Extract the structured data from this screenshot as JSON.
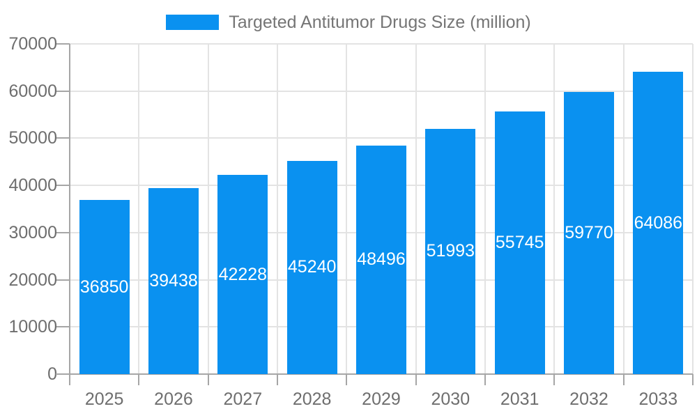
{
  "chart_data": {
    "type": "bar",
    "title": "",
    "legend": "Targeted Antitumor Drugs Size (million)",
    "categories": [
      "2025",
      "2026",
      "2027",
      "2028",
      "2029",
      "2030",
      "2031",
      "2032",
      "2033"
    ],
    "series": [
      {
        "name": "Targeted Antitumor Drugs Size (million)",
        "values": [
          36850,
          39438,
          42228,
          45240,
          48496,
          51993,
          55745,
          59770,
          64086
        ]
      }
    ],
    "bar_value_labels": [
      "36850",
      "39438",
      "42228",
      "45240",
      "48496",
      "51993",
      "55745",
      "59770",
      "64086"
    ],
    "xlabel": "",
    "ylabel": "",
    "ylim": [
      0,
      70000
    ],
    "ytick_step": 10000,
    "ytick_labels": [
      "0",
      "10000",
      "20000",
      "30000",
      "40000",
      "50000",
      "60000",
      "70000"
    ],
    "grid": true,
    "legend_position": "top",
    "colors": {
      "bar": "#0a91f0",
      "bar_label_text": "#ffffff",
      "axis_label_text": "#6e6e6e",
      "legend_text": "#757575",
      "gridline": "#e3e3e3",
      "axis_line": "#a6a6a6",
      "background": "#ffffff"
    }
  }
}
